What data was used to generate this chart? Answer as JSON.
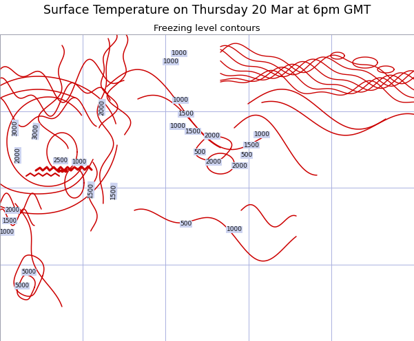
{
  "title": "Surface Temperature on Thursday 20 Mar at 6pm GMT",
  "subtitle": "Freezing level contours",
  "map_bg": "#ccd3f0",
  "contour_color": "#cc0000",
  "grid_color": "#aab0e0",
  "title_bg": "#ffffff",
  "title_fontsize": 12.5,
  "subtitle_fontsize": 9.5,
  "fig_width": 6.01,
  "fig_height": 4.96,
  "dpi": 100,
  "label_fontsize": 6.5
}
